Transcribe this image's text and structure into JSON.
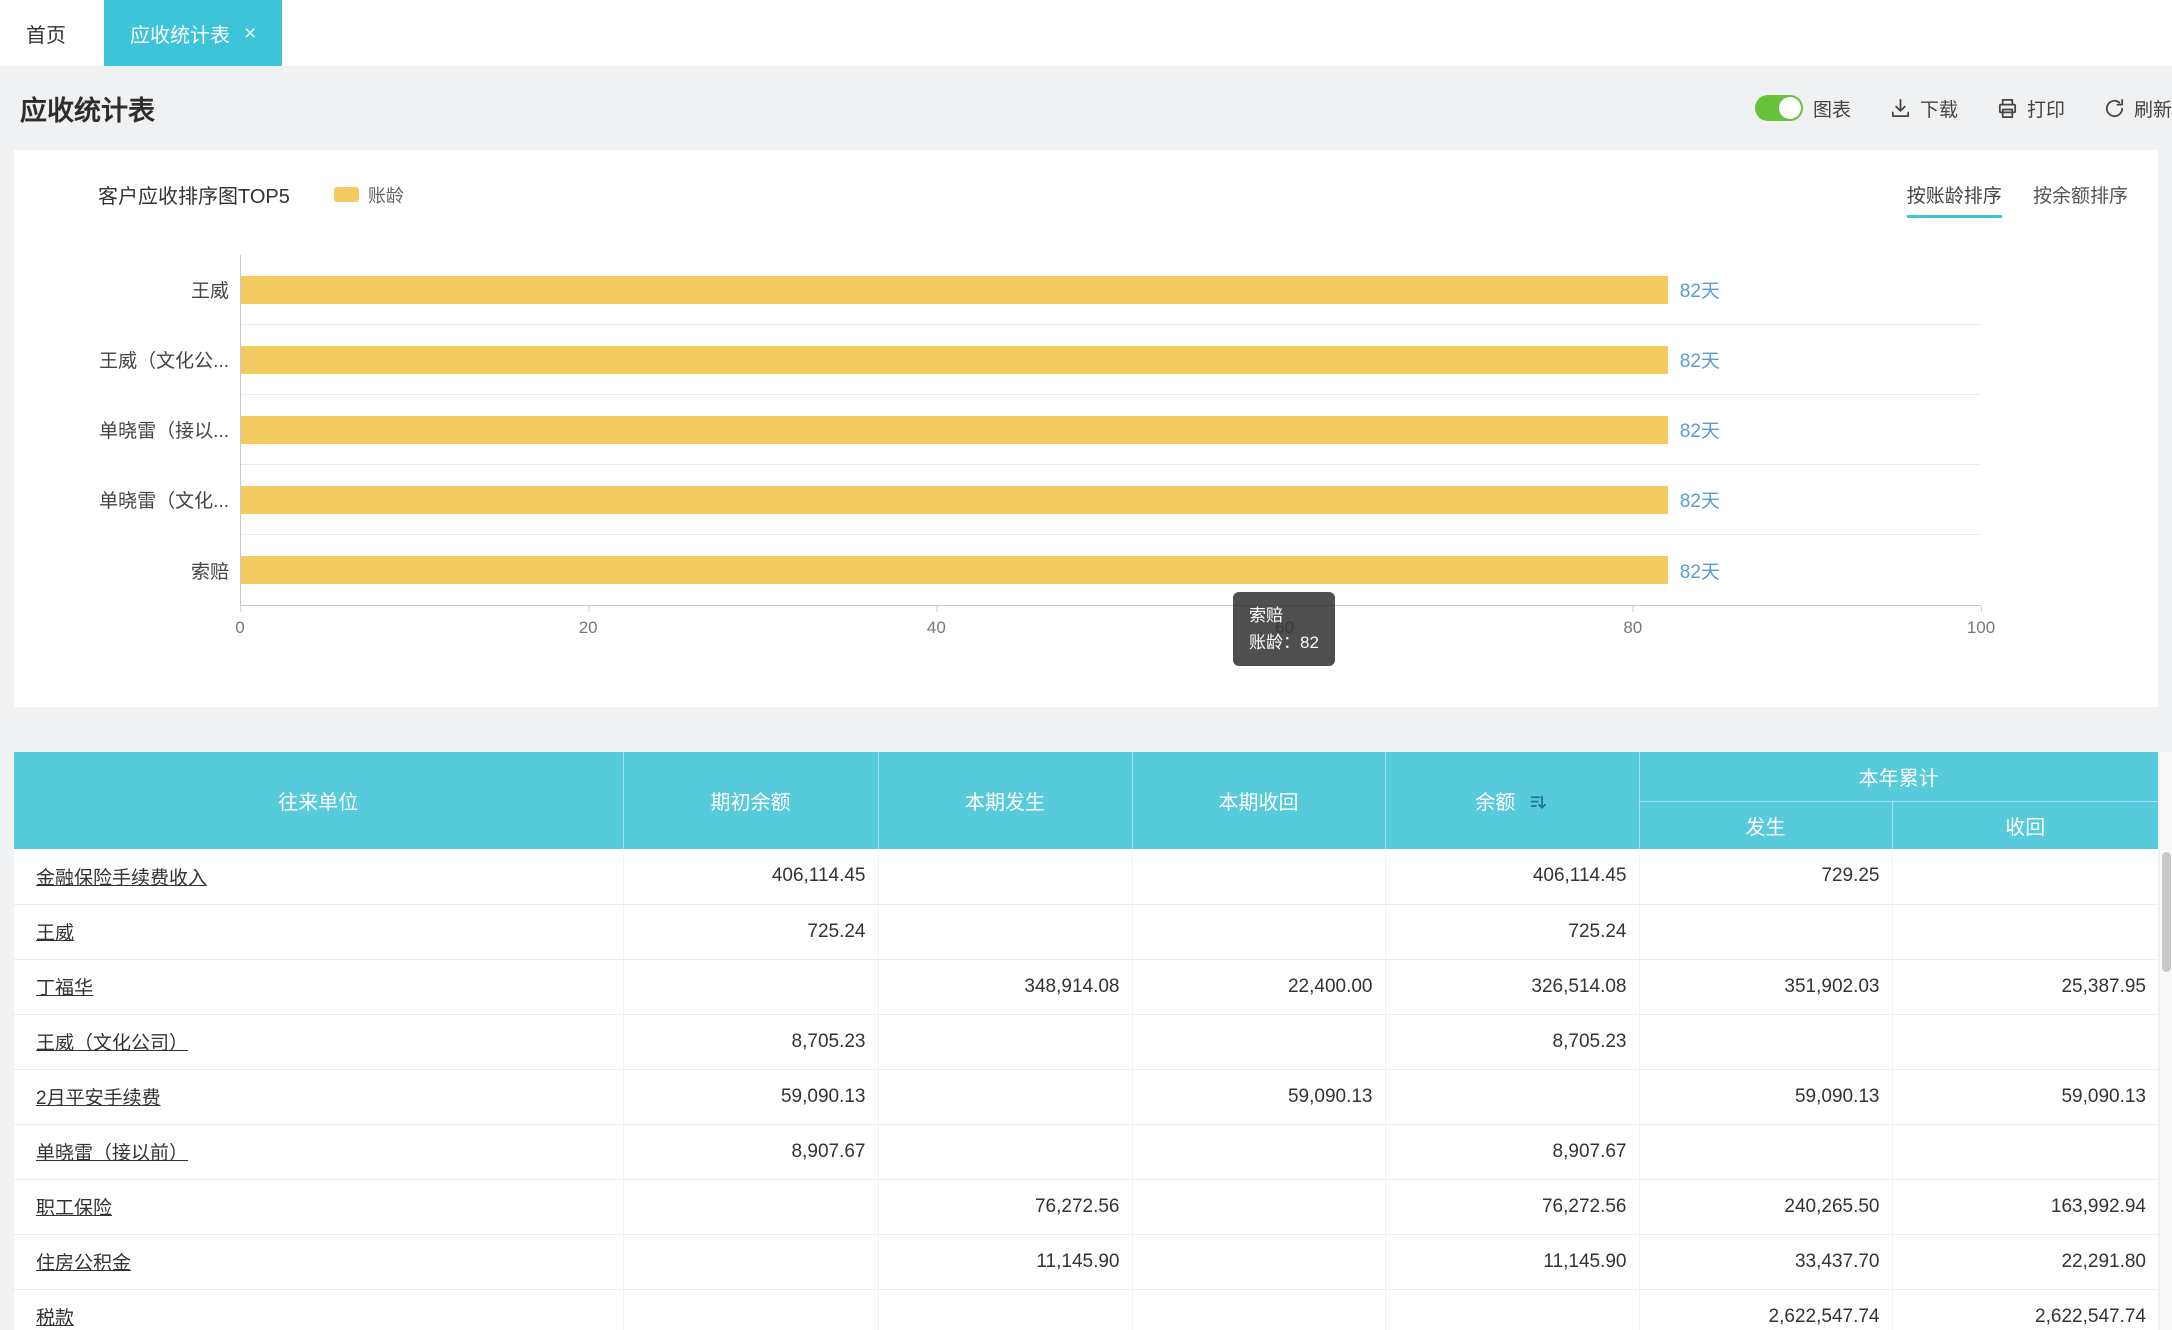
{
  "tabs": [
    {
      "label": "首页",
      "active": false
    },
    {
      "label": "应收统计表",
      "active": true,
      "close_icon": "×"
    }
  ],
  "page": {
    "title": "应收统计表"
  },
  "toolbar": {
    "chart_toggle": {
      "label": "图表",
      "on": true
    },
    "download": "下载",
    "print": "打印",
    "refresh": "刷新"
  },
  "chart": {
    "sort_options": [
      {
        "label": "按账龄排序",
        "active": true
      },
      {
        "label": "按余额排序",
        "active": false
      }
    ]
  },
  "chart_data": {
    "type": "bar",
    "orientation": "horizontal",
    "title": "客户应收排序图TOP5",
    "legend": {
      "label": "账龄",
      "color": "#f3cb60"
    },
    "categories": [
      "王威",
      "王威（文化公...",
      "单晓雷（接以...",
      "单晓雷（文化...",
      "索赔"
    ],
    "values": [
      82,
      82,
      82,
      82,
      82
    ],
    "unit": "天",
    "xlim": [
      0,
      100
    ],
    "xticks": [
      0,
      20,
      40,
      60,
      80,
      100
    ],
    "bar_color": "#f3cb60",
    "grid": "horizontal-row-separators",
    "legend_position": "top-left",
    "tooltip": {
      "title": "索赔",
      "text": "账龄：82"
    }
  },
  "table": {
    "headers": {
      "unit": "往来单位",
      "opening_balance": "期初余额",
      "period_occurred": "本期发生",
      "period_recovered": "本期收回",
      "balance": "余额",
      "year_total": "本年累计",
      "year_occurred": "发生",
      "year_recovered": "收回"
    },
    "rows": [
      [
        "金融保险手续费收入",
        "406,114.45",
        "",
        "",
        "406,114.45",
        "729.25",
        ""
      ],
      [
        "王威",
        "725.24",
        "",
        "",
        "725.24",
        "",
        ""
      ],
      [
        "丁福华",
        "",
        "348,914.08",
        "22,400.00",
        "326,514.08",
        "351,902.03",
        "25,387.95"
      ],
      [
        "王威（文化公司）",
        "8,705.23",
        "",
        "",
        "8,705.23",
        "",
        ""
      ],
      [
        "2月平安手续费",
        "59,090.13",
        "",
        "59,090.13",
        "",
        "59,090.13",
        "59,090.13"
      ],
      [
        "单晓雷（接以前）",
        "8,907.67",
        "",
        "",
        "8,907.67",
        "",
        ""
      ],
      [
        "职工保险",
        "",
        "76,272.56",
        "",
        "76,272.56",
        "240,265.50",
        "163,992.94"
      ],
      [
        "住房公积金",
        "",
        "11,145.90",
        "",
        "11,145.90",
        "33,437.70",
        "22,291.80"
      ],
      [
        "税款",
        "",
        "",
        "",
        "",
        "2,622,547.74",
        "2,622,547.74"
      ]
    ]
  },
  "colors": {
    "accent_teal": "#3ec4d8",
    "table_header_teal": "#57cadc",
    "bar_yellow": "#f3cb60",
    "toggle_green": "#67c23a",
    "bar_value_blue": "#5b9bd5"
  }
}
